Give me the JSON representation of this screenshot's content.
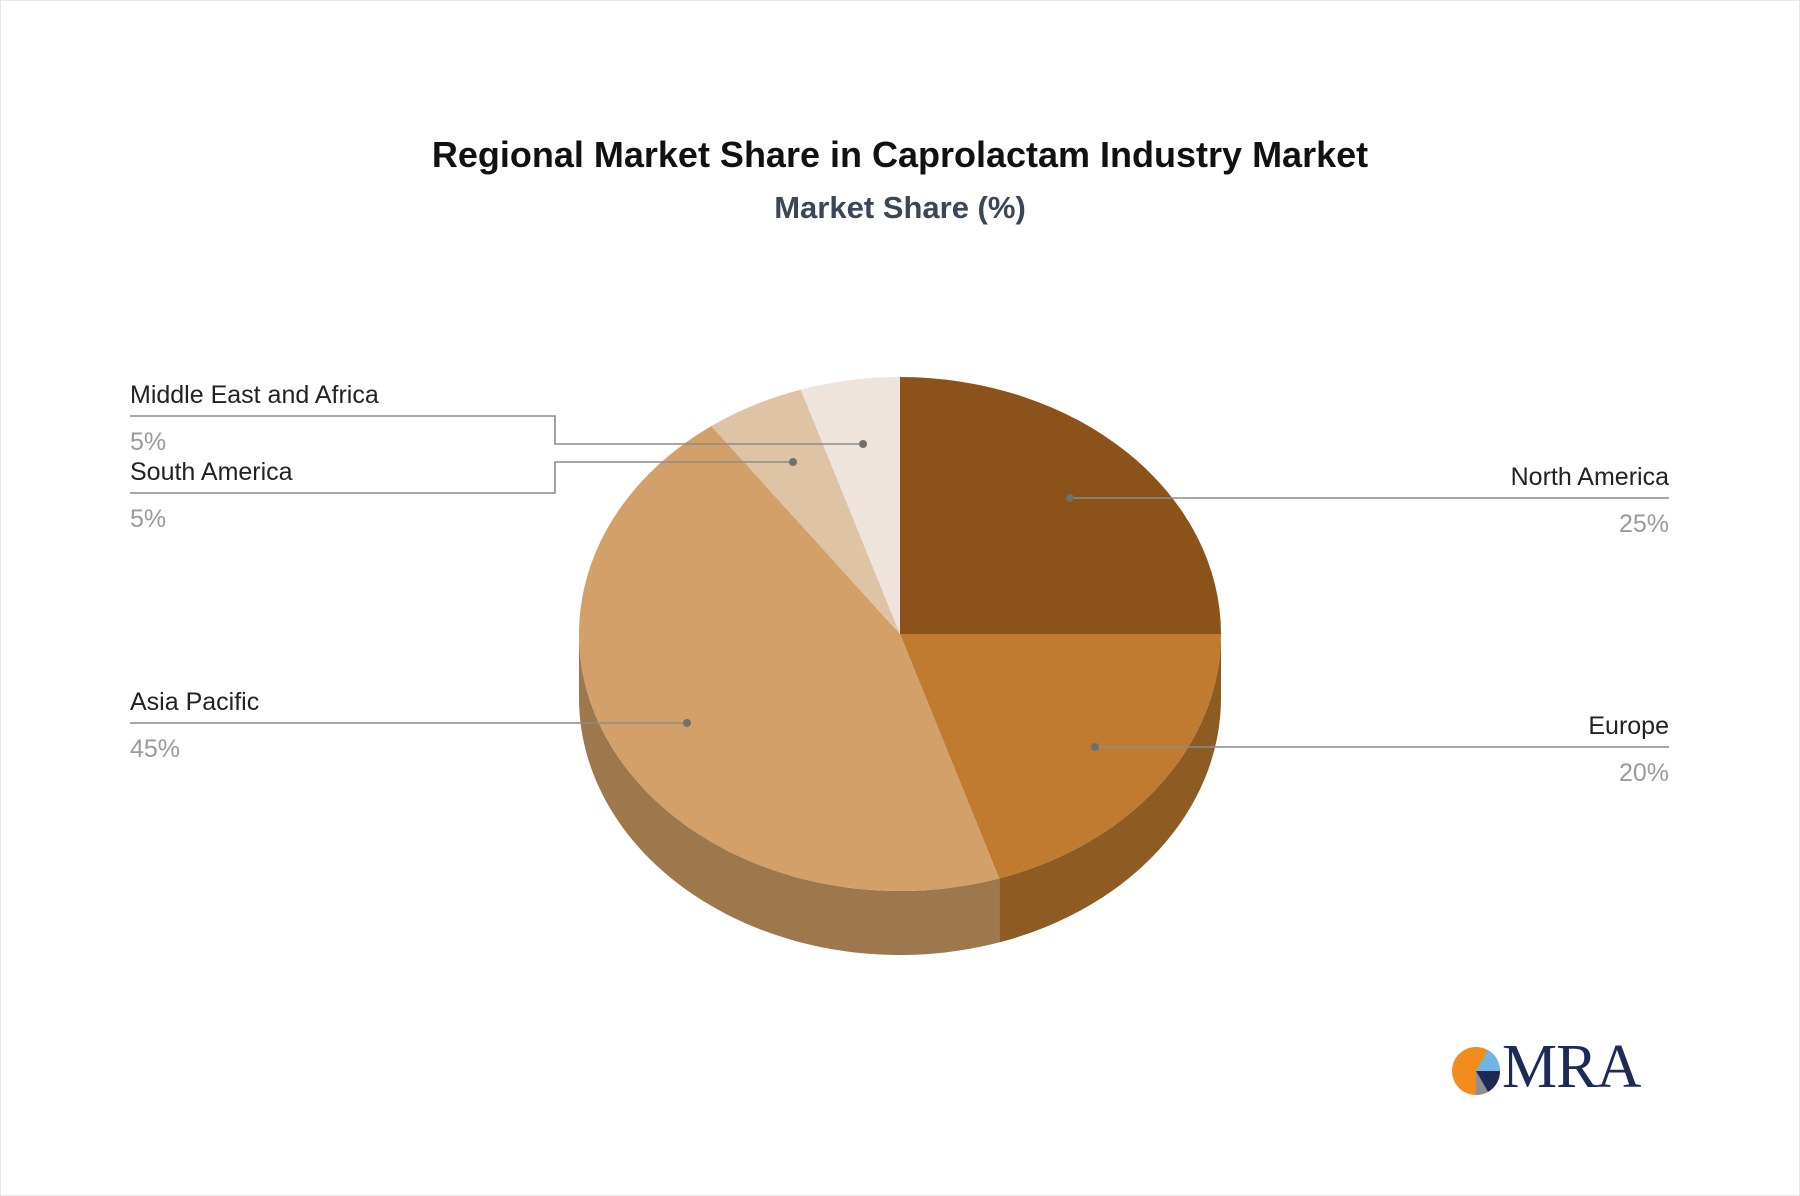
{
  "chart_data": {
    "type": "pie",
    "title": "Regional Market Share in Caprolactam Industry Market",
    "subtitle": "Market Share (%)",
    "slices": [
      {
        "label": "North America",
        "value": 25,
        "value_label": "25%",
        "color": "#8b531a",
        "side_color": "#6b3f12"
      },
      {
        "label": "Europe",
        "value": 20,
        "value_label": "20%",
        "color": "#c07b30",
        "side_color": "#8e5b22"
      },
      {
        "label": "Asia Pacific",
        "value": 45,
        "value_label": "45%",
        "color": "#d2a068",
        "side_color": "#9d784c"
      },
      {
        "label": "South America",
        "value": 5,
        "value_label": "5%",
        "color": "#dfc3a5",
        "side_color": "#a99276"
      },
      {
        "label": "Middle East and Africa",
        "value": 5,
        "value_label": "5%",
        "color": "#eee4dc",
        "side_color": "#b6aaa0"
      }
    ],
    "start_angle": "12 o'clock",
    "direction": "clockwise",
    "style": "3d"
  },
  "logo": {
    "text": "MRA",
    "colors": {
      "orange": "#f28c1c",
      "navy": "#1d2a55",
      "blue": "#6fb6e6",
      "gray": "#8a8f98"
    }
  }
}
